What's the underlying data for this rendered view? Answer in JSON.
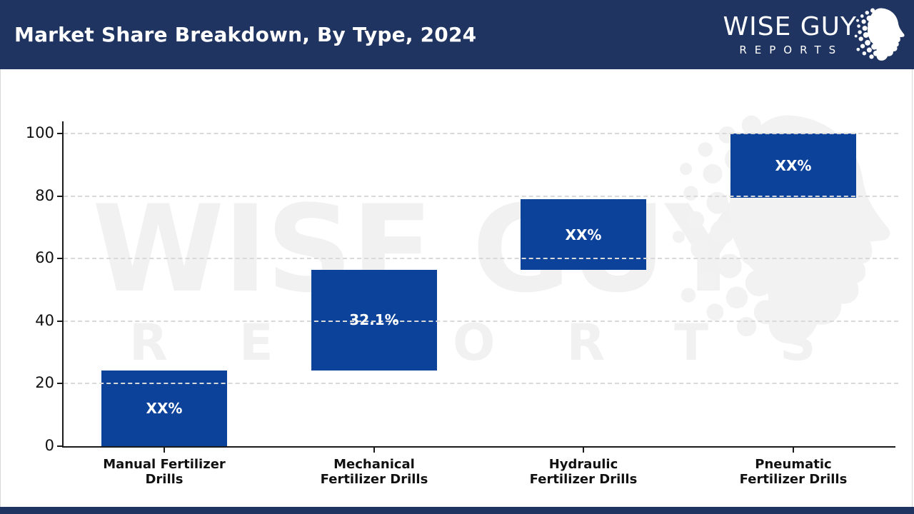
{
  "header": {
    "title": "Market Share Breakdown, By Type, 2024",
    "logo": {
      "name": "WISE GUY",
      "tagline": "REPORTS"
    }
  },
  "watermark": {
    "line1": "WISE GUY",
    "line2": "REPORTS"
  },
  "chart_data": {
    "type": "bar",
    "subtype": "floating-waterfall-bars",
    "title": "Market Share Breakdown, By Type, 2024",
    "categories": [
      "Manual Fertilizer Drills",
      "Mechanical Fertilizer Drills",
      "Hydraulic Fertilizer Drills",
      "Pneumatic Fertilizer Drills"
    ],
    "category_lines": [
      [
        "Manual Fertilizer",
        "Drills"
      ],
      [
        "Mechanical",
        "Fertilizer Drills"
      ],
      [
        "Hydraulic",
        "Fertilizer Drills"
      ],
      [
        "Pneumatic",
        "Fertilizer Drills"
      ]
    ],
    "segments": [
      {
        "category": "Manual Fertilizer Drills",
        "label": "XX%",
        "start": 0,
        "end": 24.3
      },
      {
        "category": "Mechanical Fertilizer Drills",
        "label": "32.1%",
        "start": 24.3,
        "end": 56.4
      },
      {
        "category": "Hydraulic Fertilizer Drills",
        "label": "XX%",
        "start": 56.4,
        "end": 78.9
      },
      {
        "category": "Pneumatic Fertilizer Drills",
        "label": "XX%",
        "start": 79.4,
        "end": 100
      }
    ],
    "ylim": [
      0,
      100
    ],
    "yticks": [
      0,
      20,
      40,
      60,
      80,
      100
    ],
    "xlabel": "",
    "ylabel": "",
    "grid": "horizontal-dashed",
    "legend": "none",
    "bar_color": "#0c4299",
    "value_label_color": "#ffffff"
  },
  "colors": {
    "header_bg": "#1f3461",
    "footer_bg": "#1f3461",
    "bar": "#0c4299",
    "gridline": "#d9d9d9",
    "axis": "#1a1a1a",
    "watermark": "#f1f1f1"
  }
}
